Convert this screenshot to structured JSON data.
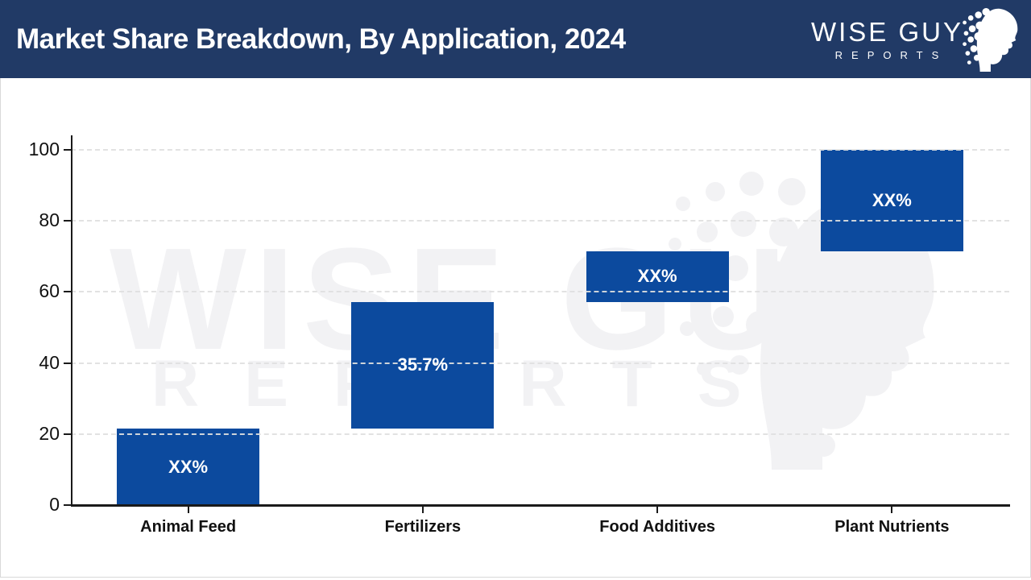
{
  "header": {
    "title": "Market Share Breakdown, By Application, 2024",
    "logo": {
      "line1": "WISE GUY",
      "line2": "REPORTS",
      "icon": "dotted-face-profile"
    }
  },
  "watermark": {
    "line1": "WISE GUY",
    "line2": "REPORTS",
    "icon": "dotted-face-profile"
  },
  "colors": {
    "header_bg": "#213a66",
    "bar": "#0c4a9e",
    "bar_label": "#ffffff",
    "gridline": "#e0e0e0",
    "axis": "#1a1a1a",
    "watermark": "#f2f2f4",
    "frame_border": "#d9d9d9"
  },
  "chart_data": {
    "type": "bar",
    "subtype": "floating-waterfall",
    "title": "Market Share Breakdown, By Application, 2024",
    "xlabel": "",
    "ylabel": "",
    "categories": [
      "Animal Feed",
      "Fertilizers",
      "Food Additives",
      "Plant Nutrients"
    ],
    "series": [
      {
        "name": "Market Share (%)",
        "segments": [
          {
            "category": "Animal Feed",
            "start": 0,
            "end": 21.5,
            "label": "XX%"
          },
          {
            "category": "Fertilizers",
            "start": 21.5,
            "end": 57.2,
            "label": "35.7%"
          },
          {
            "category": "Food Additives",
            "start": 57.2,
            "end": 71.4,
            "label": "XX%"
          },
          {
            "category": "Plant Nutrients",
            "start": 71.4,
            "end": 100,
            "label": "XX%"
          }
        ]
      }
    ],
    "ylim": [
      0,
      100
    ],
    "yticks": [
      0,
      20,
      40,
      60,
      80,
      100
    ],
    "grid": "horizontal-dashed",
    "legend": "none"
  }
}
